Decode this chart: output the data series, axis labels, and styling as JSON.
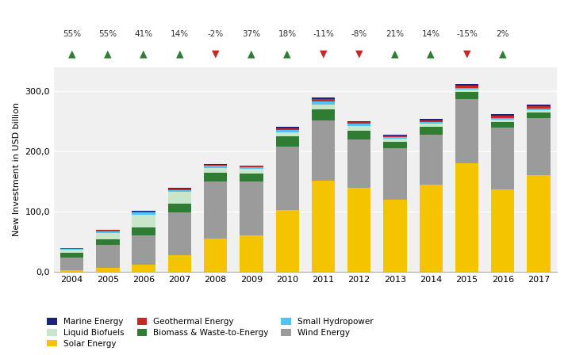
{
  "years": [
    2004,
    2005,
    2006,
    2007,
    2008,
    2009,
    2010,
    2011,
    2012,
    2013,
    2014,
    2015,
    2016,
    2017
  ],
  "pct_changes": [
    55,
    55,
    41,
    14,
    -2,
    37,
    18,
    -11,
    -8,
    21,
    14,
    -15,
    2,
    null
  ],
  "series": {
    "Solar Energy": [
      2.0,
      6.0,
      12.0,
      28.0,
      55.0,
      60.0,
      103.0,
      152.0,
      140.0,
      120.0,
      145.0,
      180.0,
      137.0,
      160.0
    ],
    "Wind Energy": [
      22.0,
      38.0,
      48.0,
      71.0,
      95.0,
      90.0,
      105.0,
      100.0,
      80.0,
      85.0,
      83.0,
      108.0,
      103.0,
      96.0
    ],
    "Biomass & Waste-to-Energy": [
      7.0,
      10.0,
      13.0,
      14.0,
      14.0,
      13.0,
      17.0,
      18.0,
      14.0,
      11.0,
      13.0,
      11.0,
      9.0,
      9.0
    ],
    "Liquid Biofuels": [
      5.0,
      10.0,
      22.0,
      20.0,
      9.0,
      8.0,
      7.0,
      8.0,
      8.0,
      5.0,
      5.0,
      4.0,
      4.0,
      4.0
    ],
    "Small Hydropower": [
      2.0,
      3.0,
      3.0,
      3.0,
      3.0,
      3.0,
      4.0,
      5.0,
      4.0,
      3.0,
      3.0,
      3.0,
      3.0,
      3.0
    ],
    "Geothermal Energy": [
      1.0,
      2.0,
      2.0,
      2.0,
      2.0,
      2.0,
      3.0,
      4.0,
      3.0,
      2.0,
      3.0,
      4.0,
      3.0,
      3.0
    ],
    "Marine Energy": [
      0.5,
      1.0,
      1.0,
      1.0,
      1.0,
      1.0,
      2.0,
      3.0,
      2.0,
      2.0,
      2.0,
      3.0,
      3.0,
      3.0
    ]
  },
  "colors": {
    "Solar Energy": "#F5C400",
    "Wind Energy": "#9B9B9B",
    "Biomass & Waste-to-Energy": "#2E7D32",
    "Liquid Biofuels": "#C8E6C9",
    "Small Hydropower": "#4FC3F7",
    "Geothermal Energy": "#C62828",
    "Marine Energy": "#1A237E"
  },
  "stack_order": [
    "Solar Energy",
    "Wind Energy",
    "Biomass & Waste-to-Energy",
    "Liquid Biofuels",
    "Small Hydropower",
    "Geothermal Energy",
    "Marine Energy"
  ],
  "legend_order": [
    [
      "Marine Energy",
      "Liquid Biofuels",
      "Solar Energy"
    ],
    [
      "Geothermal Energy",
      "Biomass & Waste-to-Energy",
      ""
    ],
    [
      "Small Hydropower",
      "Wind Energy",
      ""
    ]
  ],
  "ylabel": "New Investment in USD billion",
  "ylim": [
    0,
    340
  ],
  "yticks": [
    0,
    100,
    200,
    300
  ],
  "ytick_labels": [
    "0,0",
    "100,0",
    "200,0",
    "300,0"
  ],
  "bg_color": "#FFFFFF",
  "plot_bg_color": "#F0F0F0",
  "arrow_up_color": "#2E7D32",
  "arrow_down_color": "#C62828"
}
